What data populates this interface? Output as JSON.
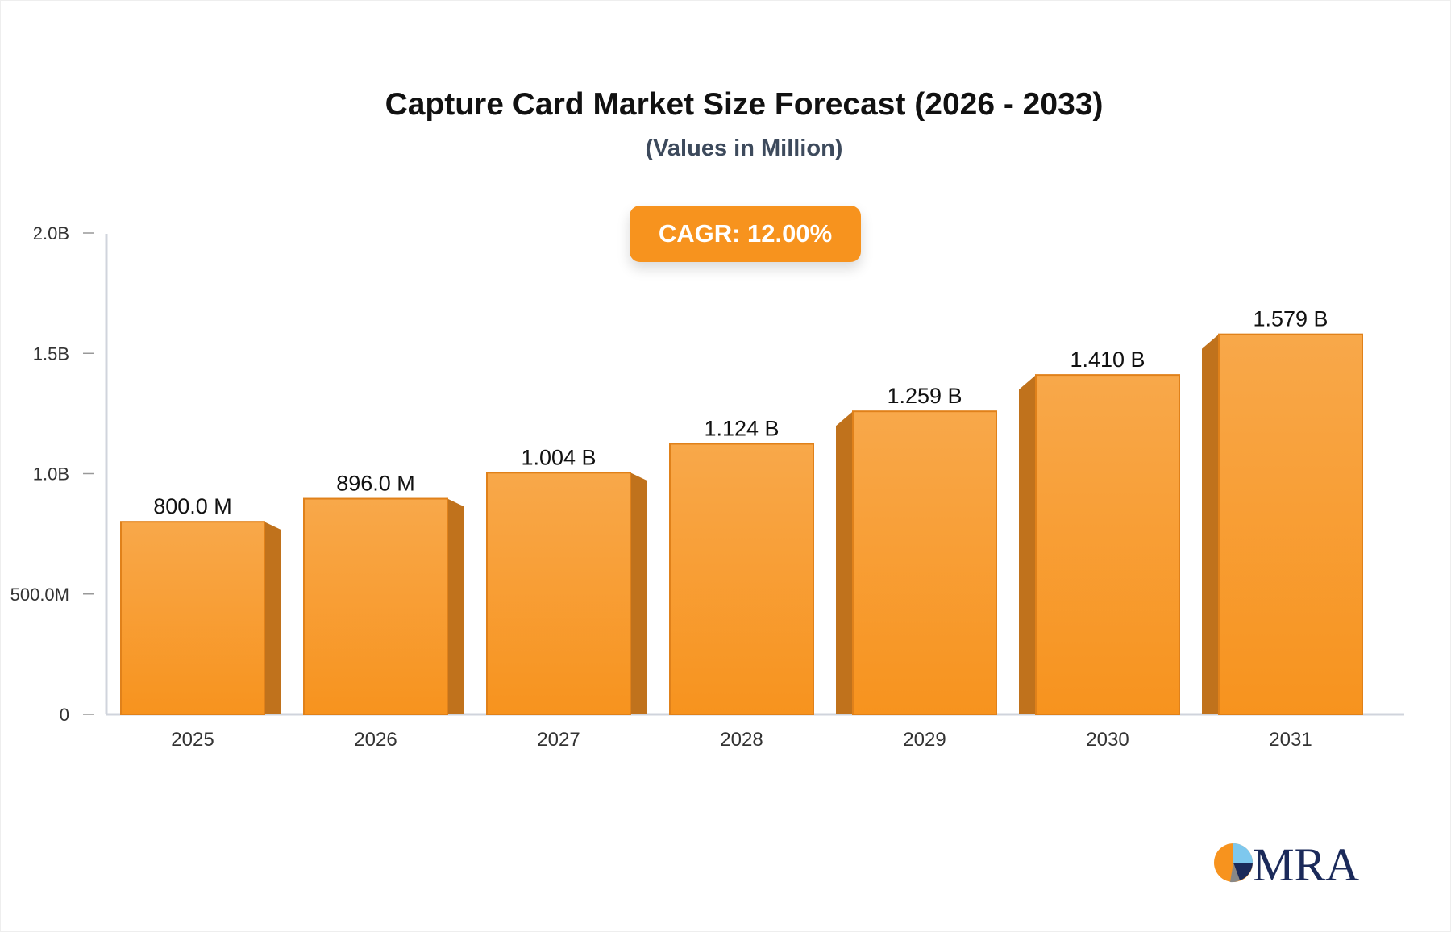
{
  "chart_data": {
    "type": "bar",
    "title": "Capture Card Market Size Forecast (2026 - 2033)",
    "subtitle": "(Values in Million)",
    "annotation": "CAGR: 12.00%",
    "categories": [
      "2025",
      "2026",
      "2027",
      "2028",
      "2029",
      "2030",
      "2031"
    ],
    "values": [
      800.0,
      896.0,
      1004,
      1124,
      1259,
      1410,
      1579
    ],
    "data_labels": [
      "800.0 M",
      "896.0 M",
      "1.004 B",
      "1.124 B",
      "1.259 B",
      "1.410 B",
      "1.579 B"
    ],
    "yticks": [
      0,
      500,
      1000,
      1500,
      2000
    ],
    "ytick_labels": [
      "0",
      "500.0M",
      "1.0B",
      "1.5B",
      "2.0B"
    ],
    "ylim": [
      0,
      2000
    ],
    "grid": false,
    "colors": {
      "bar_top": "#f8a84a",
      "bar_bottom": "#f7931e",
      "bar_side": "#c0721c",
      "bar_edge": "#e0811a",
      "cagr_bg": "#f7931e"
    }
  },
  "logo": {
    "text": "MRA"
  }
}
